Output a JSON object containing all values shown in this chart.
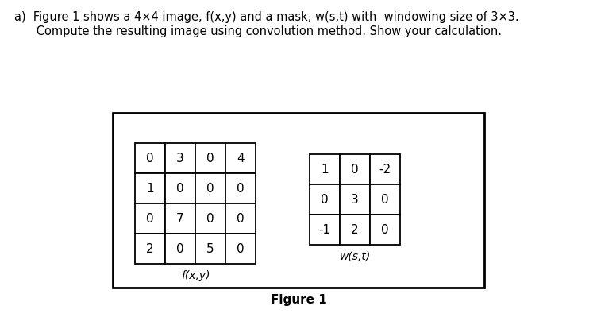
{
  "title_line1": "a)  Figure 1 shows a 4×4 image, f(x,y) and a mask, w(s,t) with  windowing size of 3×3.",
  "title_line2": "      Compute the resulting image using convolution method. Show your calculation.",
  "figure_caption": "Figure 1",
  "fxy_label": "f(x,y)",
  "wst_label": "w(s,t)",
  "fxy_data": [
    [
      0,
      3,
      0,
      4
    ],
    [
      1,
      0,
      0,
      0
    ],
    [
      0,
      7,
      0,
      0
    ],
    [
      2,
      0,
      5,
      0
    ]
  ],
  "wst_data": [
    [
      1,
      0,
      -2
    ],
    [
      0,
      3,
      0
    ],
    [
      -1,
      2,
      0
    ]
  ],
  "bg_color": "#ffffff",
  "box_color": "#000000",
  "text_color": "#000000",
  "font_size_title": 10.5,
  "font_size_cell": 11,
  "font_size_caption": 11,
  "font_size_label": 10
}
